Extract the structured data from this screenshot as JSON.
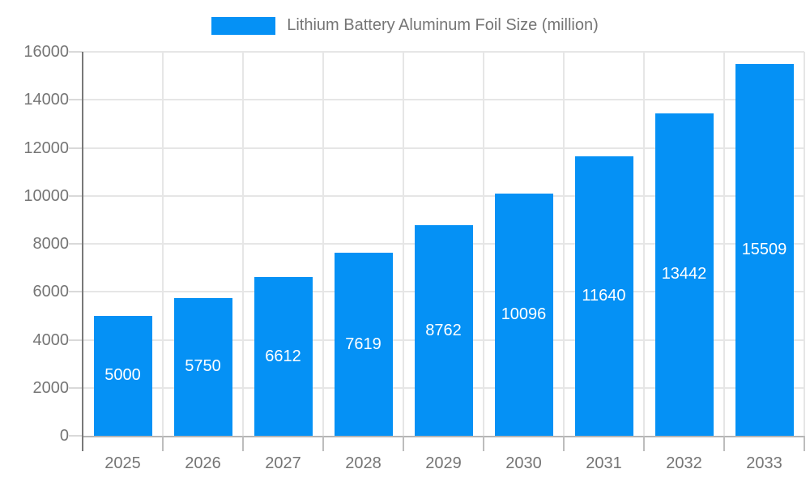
{
  "legend": {
    "label": "Lithium Battery Aluminum Foil Size (million)"
  },
  "colors": {
    "bar": "#0591f5",
    "grid": "#e6e6e6",
    "y_axis_line": "#787878",
    "baseline": "#b5b5b5",
    "tick": "#bdbdbd",
    "axis_text": "#757575",
    "bar_label_text": "#ffffff",
    "background": "#ffffff"
  },
  "chart_data": {
    "type": "bar",
    "title": "Lithium Battery Aluminum Foil Size (million)",
    "categories": [
      "2025",
      "2026",
      "2027",
      "2028",
      "2029",
      "2030",
      "2031",
      "2032",
      "2033"
    ],
    "values": [
      5000,
      5750,
      6612,
      7619,
      8762,
      10096,
      11640,
      13442,
      15509
    ],
    "series": [
      {
        "name": "Lithium Battery Aluminum Foil Size (million)",
        "values": [
          5000,
          5750,
          6612,
          7619,
          8762,
          10096,
          11640,
          13442,
          15509
        ]
      }
    ],
    "xlabel": "",
    "ylabel": "",
    "ylim": [
      0,
      16000
    ],
    "yticks": [
      0,
      2000,
      4000,
      6000,
      8000,
      10000,
      12000,
      14000,
      16000
    ],
    "grid": true,
    "legend_position": "top-center",
    "bar_value_labels": "inside-center"
  }
}
